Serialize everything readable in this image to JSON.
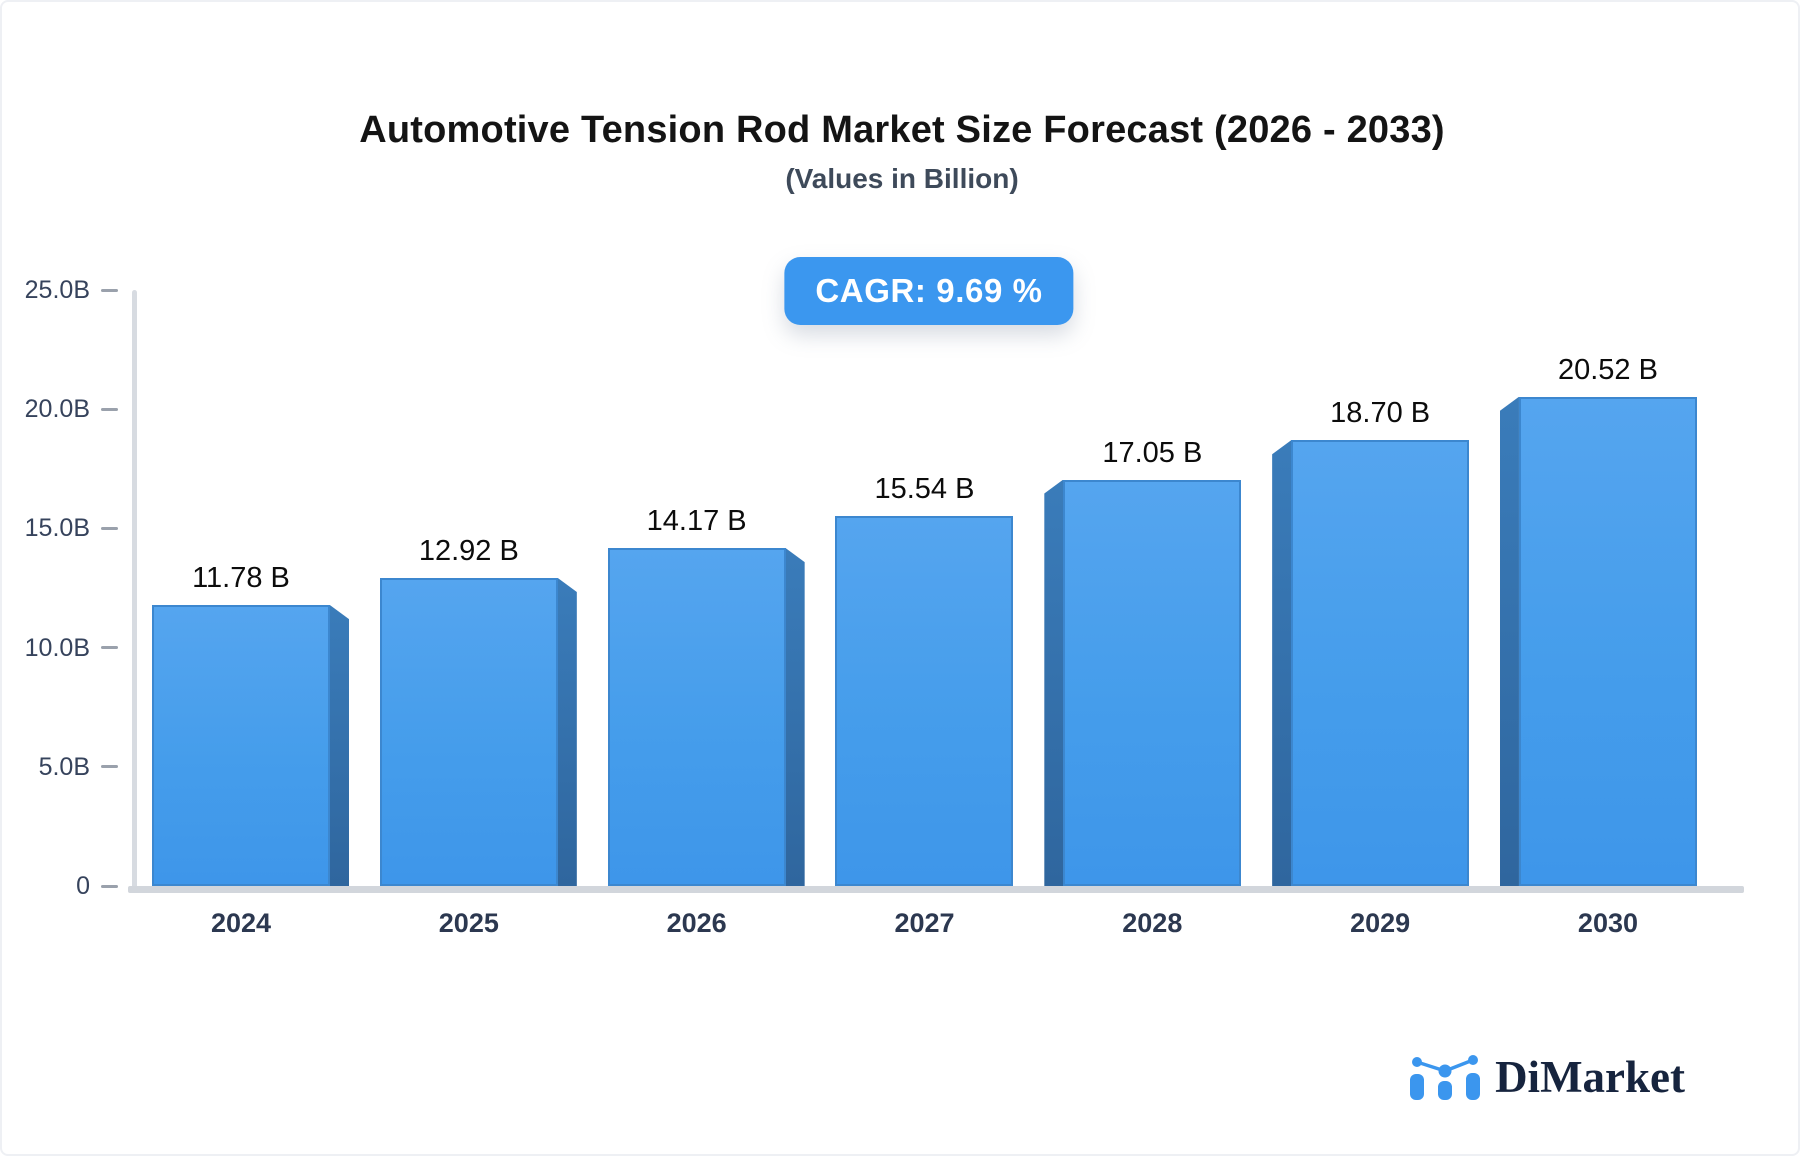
{
  "header": {
    "title": "Automotive Tension Rod Market Size Forecast (2026 - 2033)",
    "subtitle": "(Values in Billion)",
    "cagr_badge": "CAGR: 9.69 %"
  },
  "chart_data": {
    "type": "bar",
    "title": "Automotive Tension Rod Market Size Forecast (2026 - 2033)",
    "subtitle": "(Values in Billion)",
    "cagr": "9.69 %",
    "categories": [
      "2024",
      "2025",
      "2026",
      "2027",
      "2028",
      "2029",
      "2030"
    ],
    "values": [
      11.78,
      12.92,
      14.17,
      15.54,
      17.05,
      18.7,
      20.52
    ],
    "value_labels": [
      "11.78 B",
      "12.92 B",
      "14.17 B",
      "15.54 B",
      "17.05 B",
      "18.70 B",
      "20.52 B"
    ],
    "ylim": [
      0,
      25
    ],
    "yticks": [
      {
        "value": 25,
        "label": "25.0B"
      },
      {
        "value": 20,
        "label": "20.0B"
      },
      {
        "value": 15,
        "label": "15.0B"
      },
      {
        "value": 10,
        "label": "10.0B"
      },
      {
        "value": 5,
        "label": "5.0B"
      },
      {
        "value": 0,
        "label": "0"
      }
    ],
    "grid": false,
    "legend": false,
    "bar_style": "3d-perspective-toward-center"
  },
  "colors": {
    "bar_face_top": "#55a5ef",
    "bar_face_bottom": "#3e96ea",
    "bar_face_border": "#3c87cf",
    "bar_side": "#31699f",
    "badge_bg": "#3b97ef",
    "badge_text": "#ffffff",
    "axis_line": "#d7dbe1",
    "baseline": "#d2d6dc",
    "tick": "#9aa1ac",
    "y_label": "#36435c",
    "x_label": "#2c3850",
    "value_label": "#0c0c0c",
    "title": "#141414",
    "subtitle": "#3e4a5a",
    "brand_text": "#16243e",
    "brand_accent": "#3b96ee"
  },
  "branding": {
    "name": "DiMarket"
  }
}
